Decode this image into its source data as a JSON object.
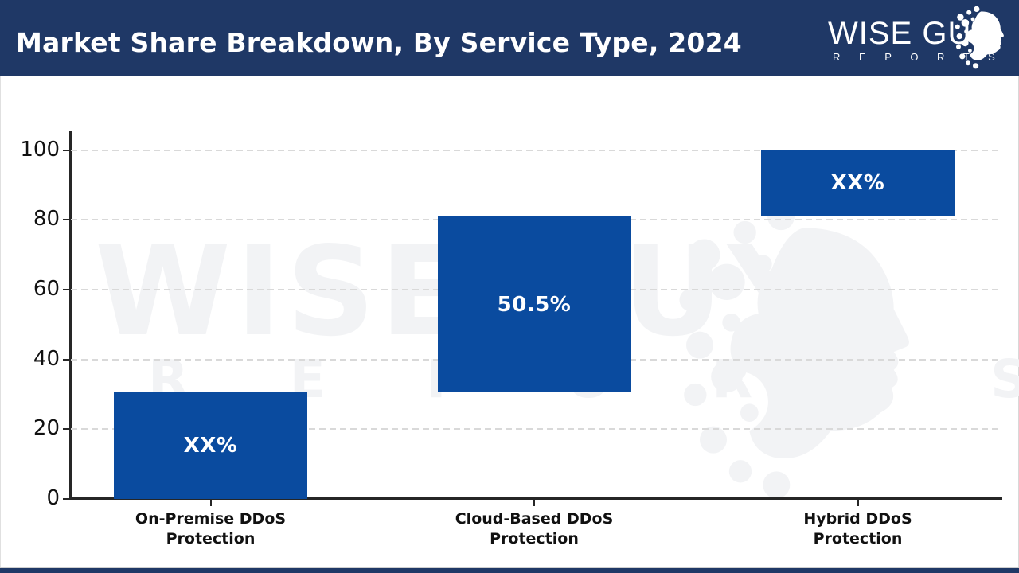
{
  "header": {
    "title": "Market Share Breakdown, By Service Type, 2024",
    "logo": {
      "wordmark": "WISE GUY",
      "sub": "R E P O R T S"
    }
  },
  "watermark": {
    "wordmark": "WISE GUY",
    "sub": "R E P O R T S"
  },
  "colors": {
    "header_bg": "#1F3866",
    "footer_bg": "#1F3866",
    "bar": "#0A4B9F",
    "grid": "#D9D9D9",
    "watermark": "#F2F3F5",
    "axis": "#262626",
    "title_text": "#FFFFFF"
  },
  "chart_data": {
    "type": "bar",
    "subtype": "waterfall",
    "title": "Market Share Breakdown, By Service Type, 2024",
    "xlabel": "",
    "ylabel": "",
    "ylim": [
      0,
      100
    ],
    "yticks": [
      0,
      20,
      40,
      60,
      80,
      100
    ],
    "grid": "horizontal-dashed",
    "legend": "none",
    "categories": [
      "On-Premise DDoS Protection",
      "Cloud-Based DDoS Protection",
      "Hybrid DDoS Protection"
    ],
    "category_lines": [
      [
        "On-Premise DDoS",
        "Protection"
      ],
      [
        "Cloud-Based DDoS",
        "Protection"
      ],
      [
        "Hybrid DDoS",
        "Protection"
      ]
    ],
    "segments": [
      {
        "category": "On-Premise DDoS Protection",
        "start": 0,
        "end": 30.5,
        "height": 30.5,
        "label": "XX%"
      },
      {
        "category": "Cloud-Based DDoS Protection",
        "start": 30.5,
        "end": 81,
        "height": 50.5,
        "label": "50.5%"
      },
      {
        "category": "Hybrid DDoS Protection",
        "start": 81,
        "end": 100,
        "height": 19,
        "label": "XX%"
      }
    ]
  }
}
